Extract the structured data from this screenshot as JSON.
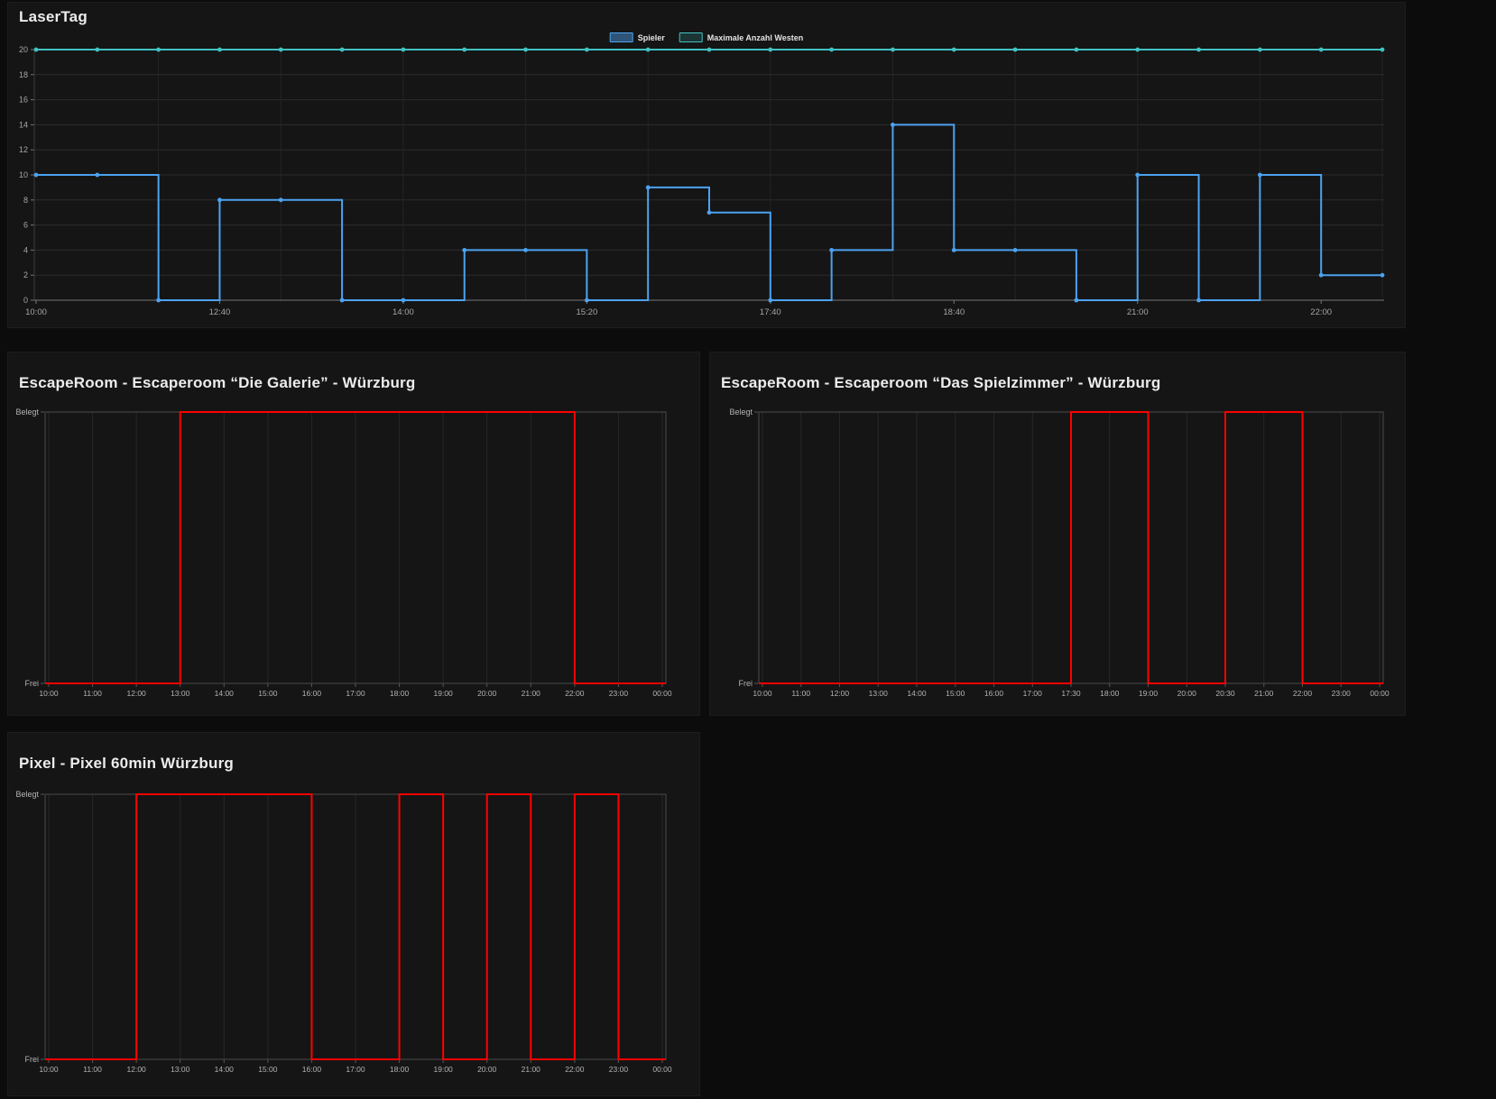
{
  "page": {
    "background": "#0c0c0c",
    "panel_background": "#151515"
  },
  "colors": {
    "blue": "#4da2f0",
    "blue_fill": "#3b7cc4",
    "teal": "#41c1c1",
    "red": "#ff0000",
    "grid_h": "#2c2c2c",
    "grid_v": "#242424",
    "frame": "#4a4a4a",
    "axis": "#777777",
    "tick_text": "#a6a6a6",
    "title_text": "#ececec"
  },
  "lasertag": {
    "title": "LaserTag",
    "legend": [
      {
        "label": "Spieler",
        "color": "#4da2f0"
      },
      {
        "label": "Maximale Anzahl Westen",
        "color": "#41c1c1"
      }
    ],
    "chart_data": {
      "type": "line",
      "step": "after",
      "ylim": [
        0,
        20
      ],
      "y_ticks": [
        0,
        2,
        4,
        6,
        8,
        10,
        12,
        14,
        16,
        18,
        20
      ],
      "n_points": 23,
      "x_tick_indices": [
        0,
        3,
        6,
        9,
        12,
        15,
        18,
        21
      ],
      "x_tick_labels": [
        "10:00",
        "12:40",
        "14:00",
        "15:20",
        "17:40",
        "18:40",
        "21:00",
        "22:00"
      ],
      "grid": true,
      "legend_position": "top-center",
      "series": [
        {
          "name": "Spieler",
          "color": "#4da2f0",
          "values": [
            10,
            10,
            0,
            8,
            8,
            0,
            0,
            4,
            4,
            0,
            9,
            7,
            0,
            4,
            14,
            4,
            4,
            0,
            10,
            0,
            10,
            2,
            2
          ]
        },
        {
          "name": "Maximale Anzahl Westen",
          "color": "#41c1c1",
          "values": [
            20,
            20,
            20,
            20,
            20,
            20,
            20,
            20,
            20,
            20,
            20,
            20,
            20,
            20,
            20,
            20,
            20,
            20,
            20,
            20,
            20,
            20,
            20
          ]
        }
      ]
    }
  },
  "galerie": {
    "title": "EscapeRoom - Escaperoom “Die Galerie” - Würzburg",
    "chart_data": {
      "type": "line",
      "step": "after",
      "y_top_label": "Belegt",
      "y_bottom_label": "Frei",
      "color": "#ff0000",
      "x_labels": [
        "10:00",
        "11:00",
        "12:00",
        "13:00",
        "14:00",
        "15:00",
        "16:00",
        "17:00",
        "18:00",
        "19:00",
        "20:00",
        "21:00",
        "22:00",
        "23:00",
        "00:00"
      ],
      "belegt_ranges": [
        [
          "13:00",
          "22:00"
        ]
      ]
    }
  },
  "spielzimmer": {
    "title": "EscapeRoom - Escaperoom “Das Spielzimmer” - Würzburg",
    "chart_data": {
      "type": "line",
      "step": "after",
      "y_top_label": "Belegt",
      "y_bottom_label": "Frei",
      "color": "#ff0000",
      "x_labels": [
        "10:00",
        "11:00",
        "12:00",
        "13:00",
        "14:00",
        "15:00",
        "16:00",
        "17:00",
        "17:30",
        "18:00",
        "19:00",
        "20:00",
        "20:30",
        "21:00",
        "22:00",
        "23:00",
        "00:00"
      ],
      "belegt_ranges": [
        [
          "17:30",
          "19:00"
        ],
        [
          "20:30",
          "22:00"
        ]
      ]
    }
  },
  "pixel": {
    "title": "Pixel - Pixel 60min Würzburg",
    "chart_data": {
      "type": "line",
      "step": "after",
      "y_top_label": "Belegt",
      "y_bottom_label": "Frei",
      "color": "#ff0000",
      "x_labels": [
        "10:00",
        "11:00",
        "12:00",
        "13:00",
        "14:00",
        "15:00",
        "16:00",
        "17:00",
        "18:00",
        "19:00",
        "20:00",
        "21:00",
        "22:00",
        "23:00",
        "00:00"
      ],
      "belegt_ranges": [
        [
          "12:00",
          "16:00"
        ],
        [
          "18:00",
          "19:00"
        ],
        [
          "20:00",
          "21:00"
        ],
        [
          "22:00",
          "23:00"
        ]
      ]
    }
  }
}
